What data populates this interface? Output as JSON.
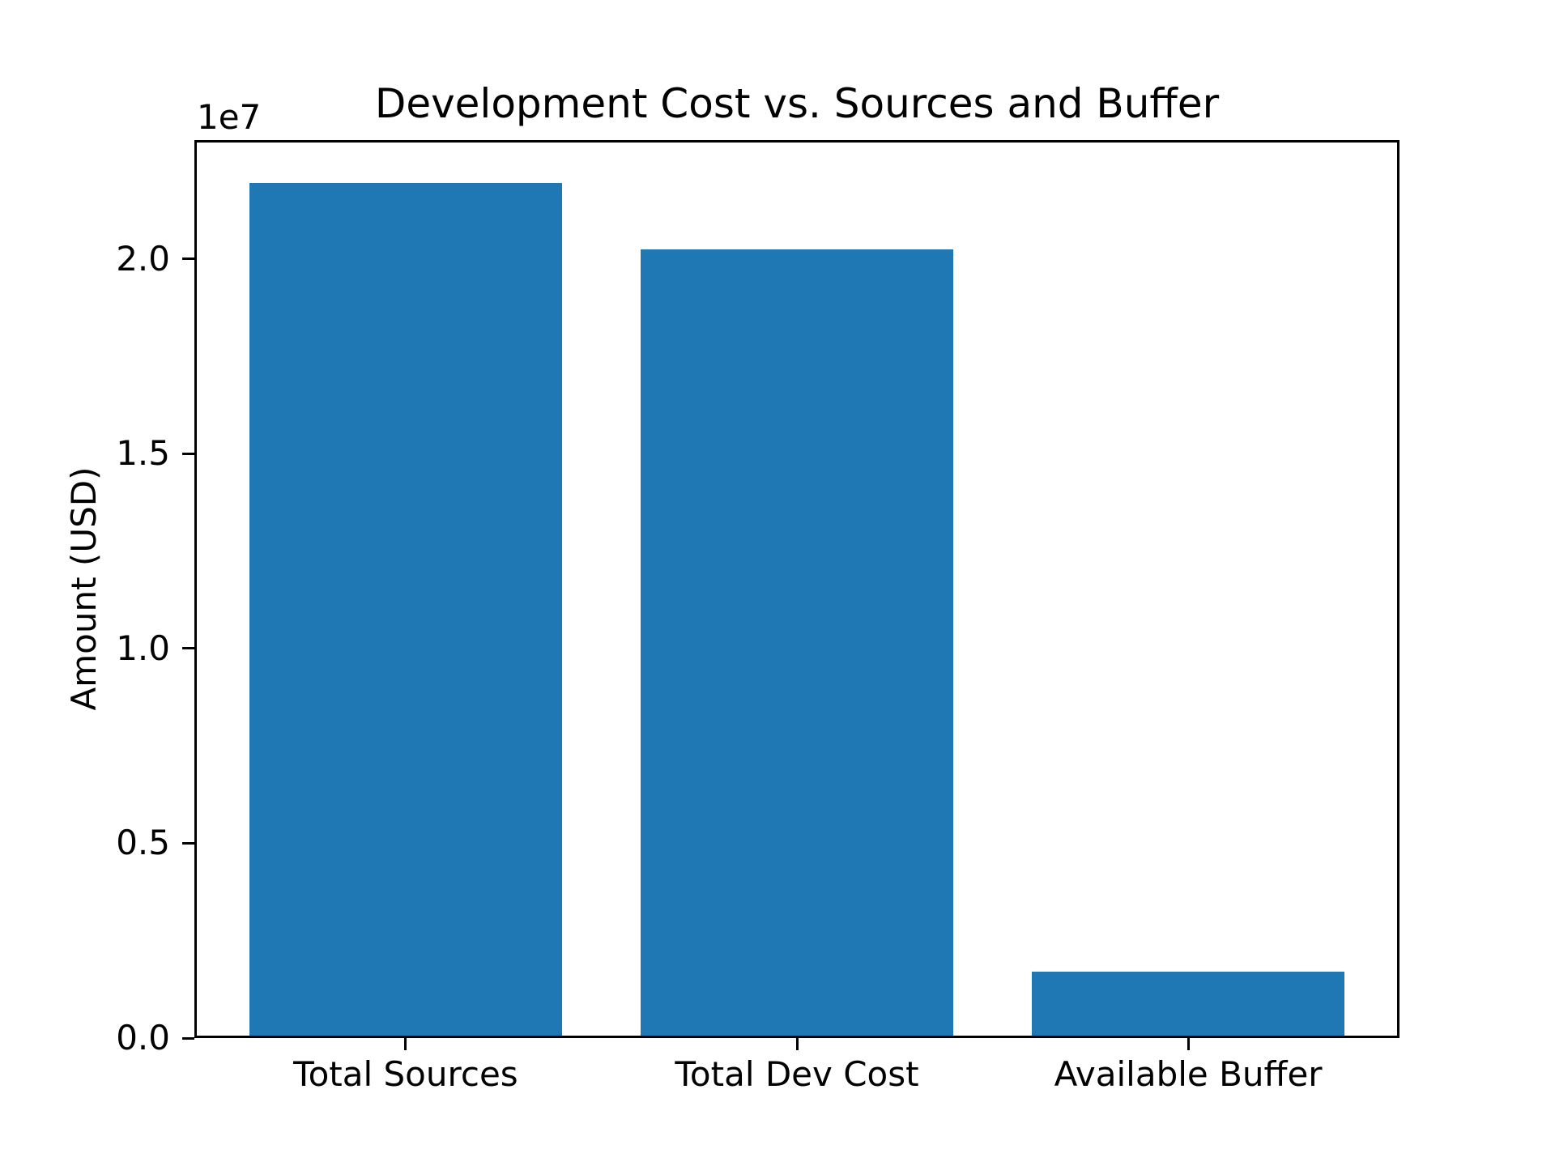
{
  "chart_data": {
    "type": "bar",
    "title": "Development Cost vs. Sources and Buffer",
    "ylabel": "Amount (USD)",
    "xlabel": "",
    "categories": [
      "Total Sources",
      "Total Dev Cost",
      "Available Buffer"
    ],
    "values": [
      21950000,
      20250000,
      1700000
    ],
    "bar_color": "#1f77b4",
    "text_color": "#000000",
    "background_color": "#ffffff",
    "ylim": [
      0,
      23047500
    ],
    "xlim": [
      -0.54,
      2.54
    ],
    "bar_width": 0.8,
    "yticks": [
      0,
      5000000,
      10000000,
      15000000,
      20000000
    ],
    "ytick_labels": [
      "0.0",
      "0.5",
      "1.0",
      "1.5",
      "2.0"
    ],
    "offset_text": "1e7",
    "grid": false,
    "legend": false
  }
}
